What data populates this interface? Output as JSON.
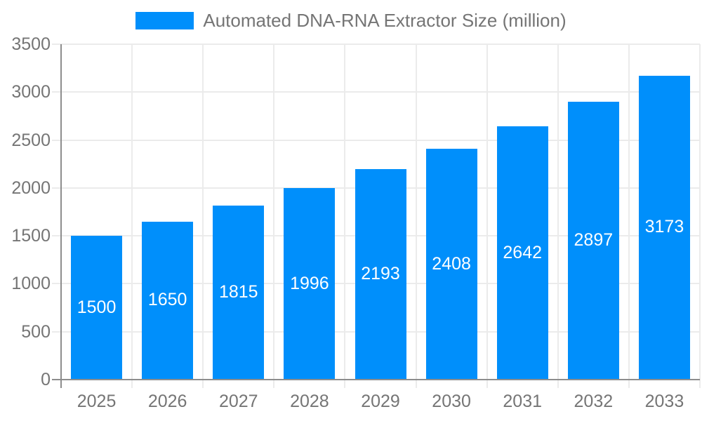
{
  "legend": {
    "label": "Automated DNA-RNA Extractor Size (million)"
  },
  "colors": {
    "bar": "#008FFB",
    "grid": "#ebebeb",
    "axis": "#8d8d8d",
    "tick_label": "#757575",
    "value_label": "#ffffff",
    "background": "#ffffff"
  },
  "chart_data": {
    "type": "bar",
    "categories": [
      "2025",
      "2026",
      "2027",
      "2028",
      "2029",
      "2030",
      "2031",
      "2032",
      "2033"
    ],
    "series": [
      {
        "name": "Automated DNA-RNA Extractor Size (million)",
        "values": [
          1500,
          1650,
          1815,
          1996,
          2193,
          2408,
          2642,
          2897,
          3173
        ]
      }
    ],
    "value_labels": [
      "1500",
      "1650",
      "1815",
      "1996",
      "2193",
      "2408",
      "2642",
      "2897",
      "3173"
    ],
    "title": "",
    "xlabel": "",
    "ylabel": "",
    "ylim": [
      0,
      3500
    ],
    "yticks": [
      0,
      500,
      1000,
      1500,
      2000,
      2500,
      3000,
      3500
    ],
    "grid": true,
    "legend_position": "top"
  }
}
